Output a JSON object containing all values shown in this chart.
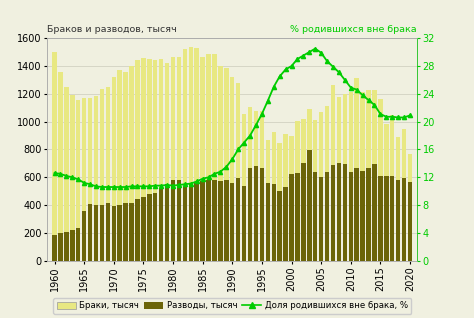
{
  "years": [
    1960,
    1961,
    1962,
    1963,
    1964,
    1965,
    1966,
    1967,
    1968,
    1969,
    1970,
    1971,
    1972,
    1973,
    1974,
    1975,
    1976,
    1977,
    1978,
    1979,
    1980,
    1981,
    1982,
    1983,
    1984,
    1985,
    1986,
    1987,
    1988,
    1989,
    1990,
    1991,
    1992,
    1993,
    1994,
    1995,
    1996,
    1997,
    1998,
    1999,
    2000,
    2001,
    2002,
    2003,
    2004,
    2005,
    2006,
    2007,
    2008,
    2009,
    2010,
    2011,
    2012,
    2013,
    2014,
    2015,
    2016,
    2017,
    2018,
    2019,
    2020
  ],
  "marriages": [
    1499,
    1360,
    1246,
    1195,
    1159,
    1167,
    1173,
    1185,
    1231,
    1252,
    1319,
    1368,
    1356,
    1401,
    1441,
    1456,
    1450,
    1440,
    1452,
    1422,
    1465,
    1468,
    1524,
    1534,
    1527,
    1464,
    1485,
    1483,
    1397,
    1384,
    1319,
    1277,
    1054,
    1106,
    1080,
    1075,
    866,
    928,
    849,
    911,
    897,
    1001,
    1020,
    1092,
    1015,
    1066,
    1114,
    1262,
    1179,
    1199,
    1215,
    1317,
    1213,
    1226,
    1226,
    1161,
    985,
    1049,
    893,
    950,
    770
  ],
  "divorces": [
    184,
    198,
    205,
    219,
    234,
    360,
    406,
    400,
    401,
    413,
    397,
    399,
    414,
    416,
    446,
    461,
    480,
    489,
    519,
    549,
    581,
    581,
    528,
    549,
    560,
    573,
    580,
    580,
    575,
    582,
    560,
    597,
    539,
    668,
    680,
    665,
    562,
    555,
    502,
    532,
    627,
    628,
    700,
    797,
    635,
    604,
    640,
    685,
    703,
    699,
    639,
    669,
    644,
    667,
    694,
    611,
    608,
    611,
    583,
    592,
    564
  ],
  "births_outside": [
    12.6,
    12.5,
    12.2,
    12.0,
    11.7,
    11.2,
    11.0,
    10.7,
    10.6,
    10.6,
    10.6,
    10.6,
    10.6,
    10.7,
    10.7,
    10.7,
    10.7,
    10.8,
    10.8,
    10.9,
    10.8,
    10.9,
    11.0,
    11.1,
    11.4,
    11.8,
    12.0,
    12.5,
    12.8,
    13.5,
    14.6,
    16.0,
    17.0,
    18.0,
    19.5,
    21.1,
    23.0,
    25.0,
    26.5,
    27.5,
    28.0,
    29.0,
    29.5,
    30.0,
    30.5,
    29.9,
    28.7,
    27.9,
    27.1,
    26.0,
    24.9,
    24.6,
    23.8,
    23.1,
    22.4,
    21.1,
    20.7,
    20.7,
    20.6,
    20.6,
    20.9
  ],
  "bar_color_marriages": "#e8e882",
  "bar_color_divorces": "#6b6408",
  "line_color": "#00cc00",
  "title_left": "Браков и разводов, тысяч",
  "title_right": "% родившихся вне брака",
  "ylim_left": [
    0,
    1600
  ],
  "ylim_right": [
    0,
    32
  ],
  "yticks_left": [
    0,
    200,
    400,
    600,
    800,
    1000,
    1200,
    1400,
    1600
  ],
  "yticks_right": [
    0,
    4,
    8,
    12,
    16,
    20,
    24,
    28,
    32
  ],
  "xticks": [
    1960,
    1965,
    1970,
    1975,
    1980,
    1985,
    1990,
    1995,
    2000,
    2005,
    2010,
    2015,
    2020
  ],
  "legend_marriages": "Браки, тысяч",
  "legend_divorces": "Разводы, тысяч",
  "legend_line": "Доля родившихся вне брака, %",
  "background_color": "#f0f0e0",
  "grid_color": "#ccccbb"
}
